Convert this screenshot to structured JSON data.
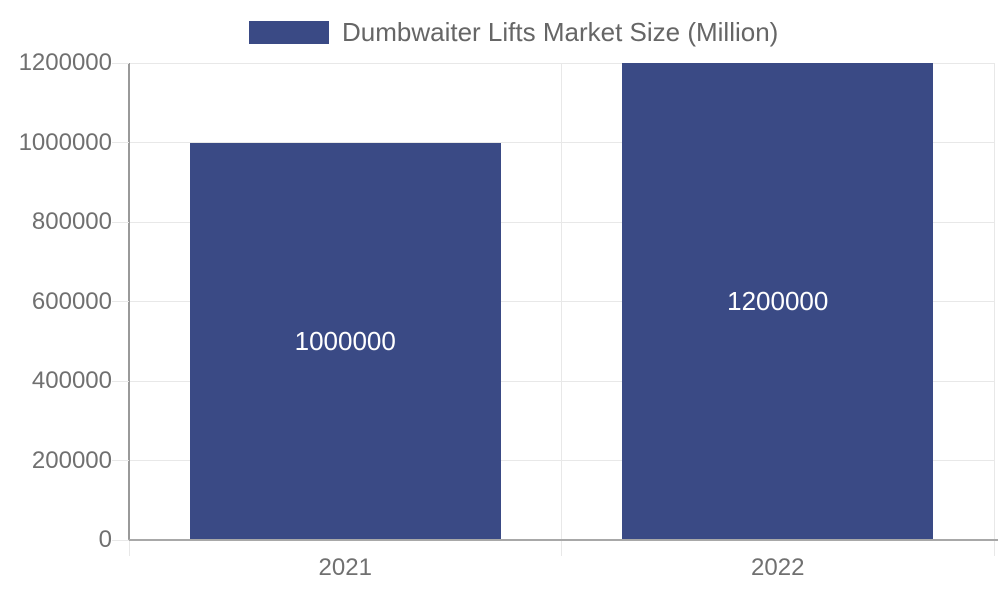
{
  "legend": {
    "label": "Dumbwaiter Lifts Market Size (Million)"
  },
  "chart_data": {
    "type": "bar",
    "title": "Dumbwaiter Lifts Market Size (Million)",
    "categories": [
      "2021",
      "2022"
    ],
    "values": [
      1000000,
      1200000
    ],
    "bar_labels": [
      "1000000",
      "1200000"
    ],
    "xlabel": "",
    "ylabel": "",
    "ylim": [
      0,
      1200000
    ],
    "yticks": [
      0,
      200000,
      400000,
      600000,
      800000,
      1000000,
      1200000
    ],
    "ytick_labels": [
      "0",
      "200000",
      "400000",
      "600000",
      "800000",
      "1000000",
      "1200000"
    ],
    "grid": true,
    "legend_position": "top-center",
    "bar_label_position": "inside-center",
    "colors": {
      "bar": "#3A4A85",
      "grid": "#E8E8E8",
      "x_axis_line": "#A8A8A8",
      "y_axis_line": "#999999",
      "axis_text": "#707070",
      "legend_text": "#666666",
      "bar_label_text": "#FFFFFF",
      "background": "#FFFFFF"
    }
  }
}
